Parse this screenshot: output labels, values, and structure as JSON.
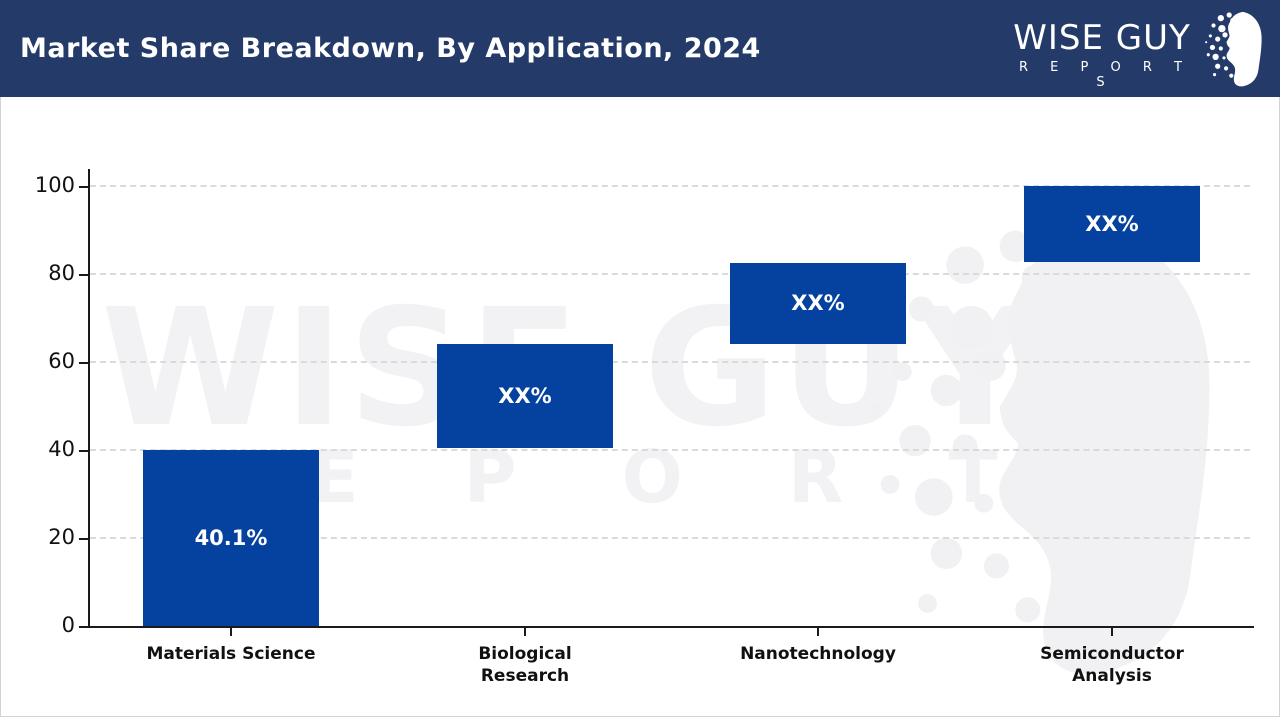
{
  "header": {
    "title": "Market Share Breakdown, By Application, 2024",
    "logo_line1": "WISE GUY",
    "logo_line2": "R E P O R T S"
  },
  "watermark": {
    "line1": "WISE GUY",
    "line2": "R E P O R T S"
  },
  "colors": {
    "header_bg": "#243b6a",
    "bar_fill": "#05419e",
    "bar_label": "#ffffff",
    "axis": "#1a1a1a",
    "gridline": "#dadada",
    "watermark": "#f2f2f4"
  },
  "chart_data": {
    "type": "bar",
    "subtype": "waterfall",
    "title": "Market Share Breakdown, By Application, 2024",
    "categories": [
      "Materials Science",
      "Biological Research",
      "Nanotechnology",
      "Semiconductor Analysis"
    ],
    "category_lines": [
      [
        "Materials Science"
      ],
      [
        "Biological",
        "Research"
      ],
      [
        "Nanotechnology"
      ],
      [
        "Semiconductor",
        "Analysis"
      ]
    ],
    "segments": [
      {
        "category": "Materials Science",
        "start": 0,
        "end": 40.1,
        "label": "40.1%"
      },
      {
        "category": "Biological Research",
        "start": 40.5,
        "end": 64.0,
        "label": "XX%"
      },
      {
        "category": "Nanotechnology",
        "start": 64.2,
        "end": 82.4,
        "label": "XX%"
      },
      {
        "category": "Semiconductor Analysis",
        "start": 82.7,
        "end": 100,
        "label": "XX%"
      }
    ],
    "ylim": [
      0,
      100
    ],
    "yticks": [
      0,
      20,
      40,
      60,
      80,
      100
    ],
    "xlabel": "",
    "ylabel": "",
    "grid": "horizontal-dashed",
    "legend": "none"
  }
}
